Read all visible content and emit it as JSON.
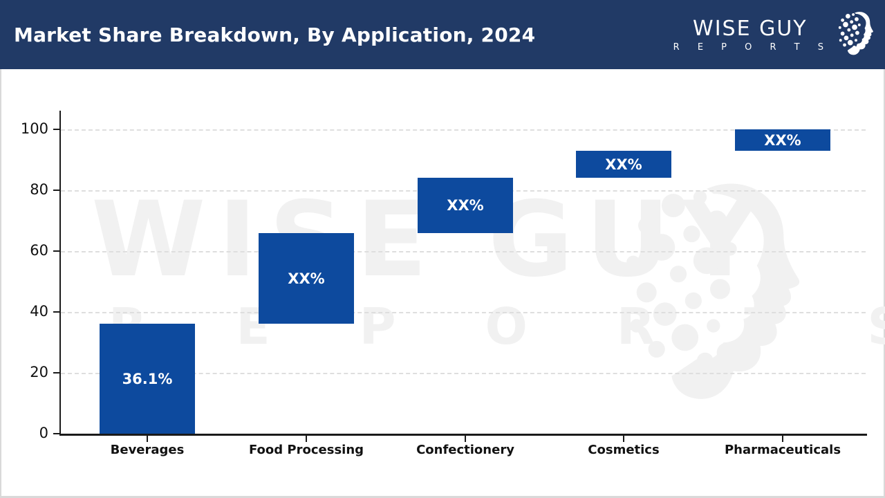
{
  "header": {
    "title": "Market Share Breakdown, By Application, 2024",
    "bg_color": "#213a66",
    "logo": {
      "line1": "WISE GUY",
      "line2": "R E P O R T S"
    }
  },
  "watermark": {
    "line1": "WISE GUY",
    "line2": "R E P O R T S"
  },
  "chart_data": {
    "type": "bar",
    "subtype": "waterfall",
    "title": "Market Share Breakdown, By Application, 2024",
    "categories": [
      "Beverages",
      "Food Processing",
      "Confectionery",
      "Cosmetics",
      "Pharmaceuticals"
    ],
    "segments": [
      {
        "category": "Beverages",
        "start": 0,
        "end": 36.1,
        "label": "36.1%"
      },
      {
        "category": "Food Processing",
        "start": 36.1,
        "end": 65.9,
        "label": "XX%"
      },
      {
        "category": "Confectionery",
        "start": 65.9,
        "end": 84.0,
        "label": "XX%"
      },
      {
        "category": "Cosmetics",
        "start": 84.0,
        "end": 92.9,
        "label": "XX%"
      },
      {
        "category": "Pharmaceuticals",
        "start": 92.9,
        "end": 100.0,
        "label": "XX%"
      }
    ],
    "xlabel": "",
    "ylabel": "",
    "y_ticks": [
      0,
      20,
      40,
      60,
      80,
      100
    ],
    "ylim": [
      0,
      106
    ],
    "grid": "horizontal-dashed",
    "legend": "none",
    "bar_color": "#0d4a9e",
    "bar_label_color": "#ffffff",
    "axis_color": "#1a1a1a",
    "gridline_color": "#dedede"
  }
}
